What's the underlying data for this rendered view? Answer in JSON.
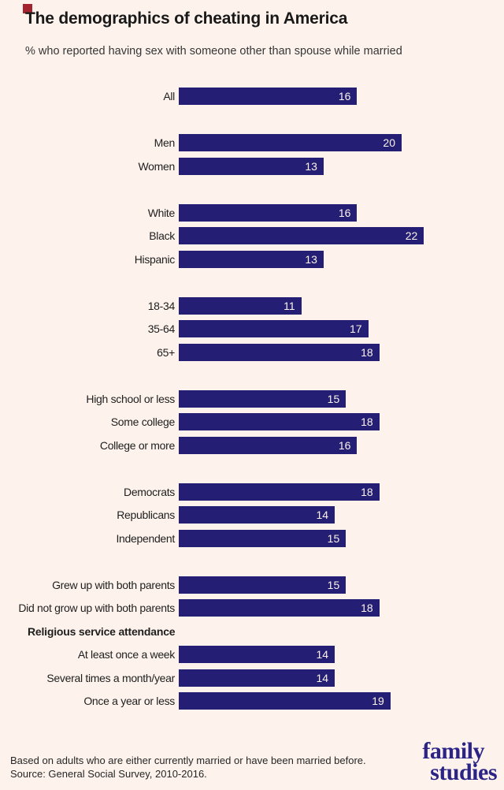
{
  "brand": {
    "square_color": "#a3242e",
    "logo_line1": "family",
    "logo_line2": "studies",
    "logo_color": "#2b2486"
  },
  "header": {
    "title": "The demographics of cheating in America",
    "subtitle": "% who reported having sex with someone other than spouse while married"
  },
  "chart_data": {
    "type": "bar",
    "orientation": "horizontal",
    "bar_color": "#241e74",
    "value_label_color": "#fbf3ea",
    "xlim": [
      0,
      22
    ],
    "grid": false,
    "legend": false,
    "groups": [
      {
        "rows": [
          {
            "label": "All",
            "value": 16
          }
        ]
      },
      {
        "rows": [
          {
            "label": "Men",
            "value": 20
          },
          {
            "label": "Women",
            "value": 13
          }
        ]
      },
      {
        "rows": [
          {
            "label": "White",
            "value": 16
          },
          {
            "label": "Black",
            "value": 22
          },
          {
            "label": "Hispanic",
            "value": 13
          }
        ]
      },
      {
        "rows": [
          {
            "label": "18-34",
            "value": 11
          },
          {
            "label": "35-64",
            "value": 17
          },
          {
            "label": "65+",
            "value": 18
          }
        ]
      },
      {
        "rows": [
          {
            "label": "High school or less",
            "value": 15
          },
          {
            "label": "Some college",
            "value": 18
          },
          {
            "label": "College or more",
            "value": 16
          }
        ]
      },
      {
        "rows": [
          {
            "label": "Democrats",
            "value": 18
          },
          {
            "label": "Republicans",
            "value": 14
          },
          {
            "label": "Independent",
            "value": 15
          }
        ]
      },
      {
        "rows": [
          {
            "label": "Grew up with both parents",
            "value": 15
          },
          {
            "label": "Did not grow up with both parents",
            "value": 18
          }
        ]
      },
      {
        "header": "Religious service attendance",
        "rows": [
          {
            "label": "At least once a week",
            "value": 14
          },
          {
            "label": "Several times a month/year",
            "value": 14
          },
          {
            "label": "Once a year or less",
            "value": 19
          }
        ]
      }
    ]
  },
  "footer": {
    "note": "Based on adults who are either currently married or have been married before.",
    "source": "Source: General Social Survey, 2010-2016."
  }
}
